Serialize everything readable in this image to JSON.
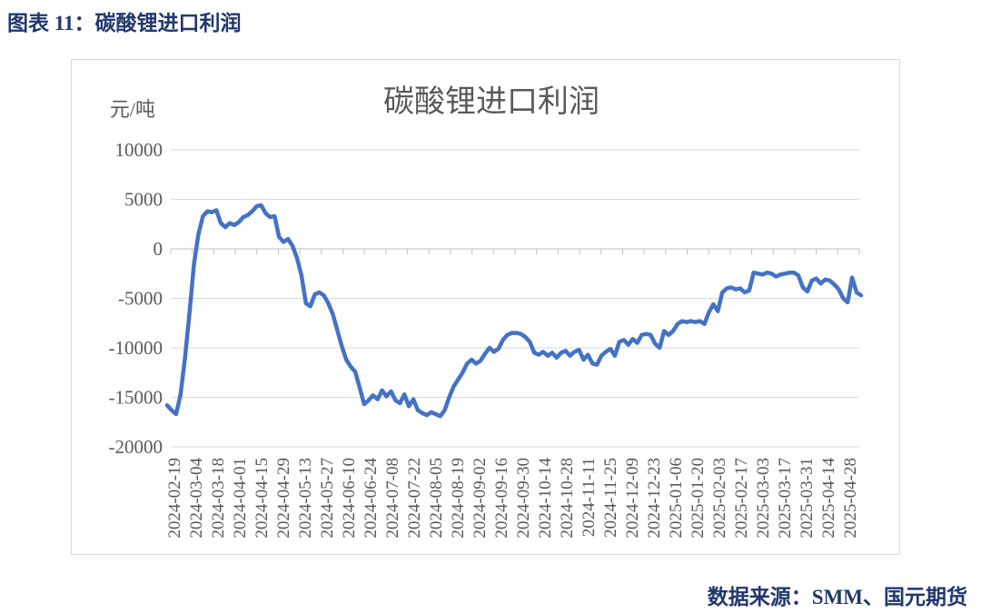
{
  "page": {
    "heading": "图表 11：碳酸锂进口利润",
    "source": "数据来源：SMM、国元期货"
  },
  "chart_data": {
    "type": "line",
    "title": "碳酸锂进口利润",
    "unit_label": "元/吨",
    "xlabel": "",
    "ylabel": "元/吨",
    "ylim": [
      -20000,
      10000
    ],
    "y_ticks": [
      10000,
      5000,
      0,
      -5000,
      -10000,
      -15000,
      -20000
    ],
    "grid": "horizontal",
    "legend": "none",
    "line_color": "#4472c4",
    "gridline_color": "#d9d9d9",
    "axis_color": "#bfbfbf",
    "tick_text_color": "#595959",
    "title_color": "#595959",
    "x_tick_labels": [
      "2024-02-19",
      "2024-03-04",
      "2024-03-18",
      "2024-04-01",
      "2024-04-15",
      "2024-04-29",
      "2024-05-13",
      "2024-05-27",
      "2024-06-10",
      "2024-06-24",
      "2024-07-08",
      "2024-07-22",
      "2024-08-05",
      "2024-08-19",
      "2024-09-02",
      "2024-09-16",
      "2024-09-30",
      "2024-10-14",
      "2024-10-28",
      "2024-11-11",
      "2024-11-25",
      "2024-12-09",
      "2024-12-23",
      "2025-01-06",
      "2025-01-20",
      "2025-02-03",
      "2025-02-17",
      "2025-03-03",
      "2025-03-17",
      "2025-03-31",
      "2025-04-14",
      "2025-04-28"
    ],
    "series": [
      {
        "name": "碳酸锂进口利润",
        "sampling": "evenly spaced from 2024-02-15 to 2025-05-02, ~3 days per point",
        "values": [
          -15800,
          -16300,
          -16700,
          -14700,
          -11000,
          -6500,
          -1500,
          1500,
          3300,
          3800,
          3700,
          3900,
          2600,
          2200,
          2600,
          2400,
          2700,
          3200,
          3400,
          3800,
          4300,
          4400,
          3600,
          3200,
          3300,
          1200,
          700,
          1000,
          300,
          -900,
          -2700,
          -5500,
          -5800,
          -4600,
          -4400,
          -4700,
          -5500,
          -6600,
          -8200,
          -9800,
          -11200,
          -11900,
          -12400,
          -14000,
          -15700,
          -15300,
          -14800,
          -15200,
          -14300,
          -14900,
          -14400,
          -15300,
          -15600,
          -14700,
          -15900,
          -15200,
          -16300,
          -16600,
          -16800,
          -16500,
          -16700,
          -16900,
          -16300,
          -15000,
          -13900,
          -13200,
          -12500,
          -11600,
          -11200,
          -11600,
          -11300,
          -10600,
          -10000,
          -10400,
          -10100,
          -9200,
          -8700,
          -8500,
          -8500,
          -8600,
          -8900,
          -9400,
          -10500,
          -10700,
          -10400,
          -10800,
          -10500,
          -11000,
          -10500,
          -10300,
          -10800,
          -10400,
          -10200,
          -11200,
          -10700,
          -11600,
          -11700,
          -10800,
          -10400,
          -10100,
          -10800,
          -9400,
          -9200,
          -9700,
          -9100,
          -9500,
          -8700,
          -8600,
          -8700,
          -9600,
          -10000,
          -8300,
          -8700,
          -8300,
          -7600,
          -7300,
          -7400,
          -7300,
          -7400,
          -7300,
          -7600,
          -6400,
          -5600,
          -6300,
          -4400,
          -4000,
          -3900,
          -4100,
          -4000,
          -4400,
          -4200,
          -2400,
          -2500,
          -2600,
          -2400,
          -2500,
          -2800,
          -2600,
          -2500,
          -2400,
          -2400,
          -2700,
          -3900,
          -4300,
          -3200,
          -3000,
          -3500,
          -3100,
          -3200,
          -3600,
          -4100,
          -5000,
          -5400,
          -2900,
          -4400,
          -4700
        ]
      }
    ]
  }
}
